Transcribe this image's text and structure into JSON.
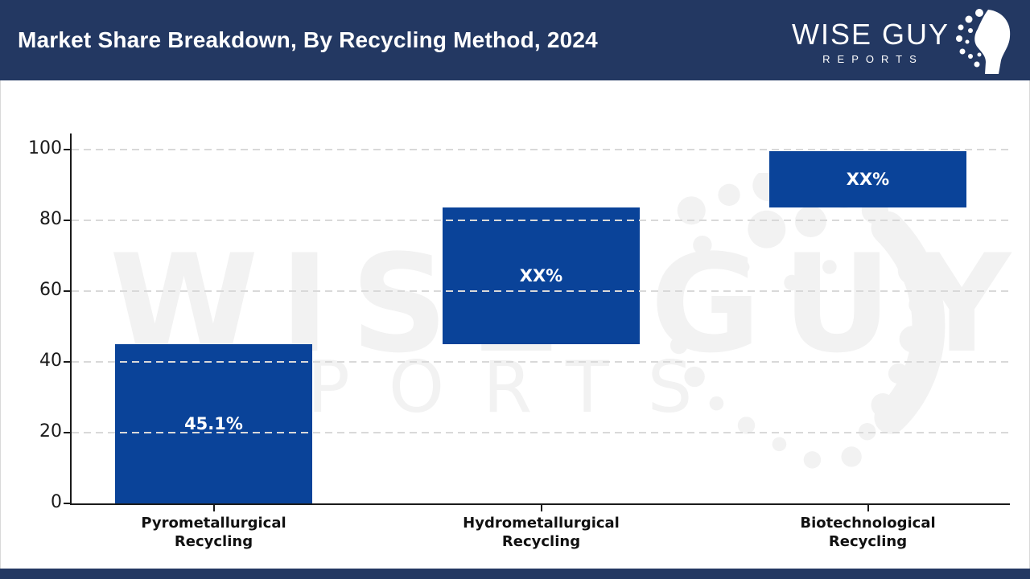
{
  "header": {
    "title": "Market Share Breakdown, By Recycling Method, 2024",
    "logo": {
      "line1": "WISE GUY",
      "line2": "REPORTS"
    },
    "bg_color": "#233862"
  },
  "watermark": {
    "line1": "WISE GUY",
    "line2": "REPORTS"
  },
  "chart_data": {
    "type": "bar",
    "subtype": "waterfall",
    "title": "Market Share Breakdown, By Recycling Method, 2024",
    "categories": [
      [
        "Pyrometallurgical",
        "Recycling"
      ],
      [
        "Hydrometallurgical",
        "Recycling"
      ],
      [
        "Biotechnological",
        "Recycling"
      ]
    ],
    "segments": [
      {
        "category": "Pyrometallurgical Recycling",
        "start": 0,
        "end": 45.1,
        "label": "45.1%"
      },
      {
        "category": "Hydrometallurgical Recycling",
        "start": 45.1,
        "end": 83.7,
        "label": "XX%"
      },
      {
        "category": "Biotechnological Recycling",
        "start": 83.7,
        "end": 99.6,
        "label": "XX%"
      }
    ],
    "yticks": [
      0,
      20,
      40,
      60,
      80,
      100
    ],
    "ylim": [
      0,
      104.5
    ],
    "xlabel": "",
    "ylabel": "",
    "legend": "none",
    "grid": "dashed-horizontal",
    "bar_color": "#0a4399",
    "gridline_color": "#d9d9d9",
    "axis_color": "#1a1a1a",
    "value_label_color": "#ffffff"
  },
  "footer": {
    "bg_color": "#233862"
  }
}
